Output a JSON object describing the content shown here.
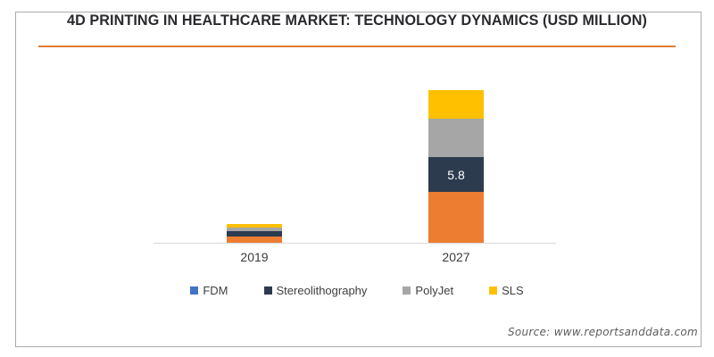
{
  "header": {
    "title": "4D PRINTING IN HEALTHCARE MARKET: TECHNOLOGY DYNAMICS (USD MILLION)",
    "underline_color": "#DF7B33"
  },
  "source": {
    "text": "Source: www.reportsanddata.com"
  },
  "frame": {
    "border_color": "#ABABAB"
  },
  "chart_data": {
    "type": "bar",
    "stacked": true,
    "title": "4D PRINTING IN HEALTHCARE MARKET: TECHNOLOGY DYNAMICS (USD MILLION)",
    "xlabel": "",
    "ylabel": "",
    "units": "USD Million",
    "categories": [
      "2019",
      "2027"
    ],
    "series": [
      {
        "name": "FDM",
        "values": [
          1.1,
          8.6
        ],
        "bar_color": "#ED7D31",
        "legend_color": "#4472C4",
        "data_labels": [
          "",
          ""
        ]
      },
      {
        "name": "Stereolithography",
        "values": [
          0.8,
          5.8
        ],
        "bar_color": "#2C3B4E",
        "legend_color": "#2C3B4E",
        "data_labels": [
          "",
          "5.8"
        ]
      },
      {
        "name": "PolyJet",
        "values": [
          0.6,
          6.6
        ],
        "bar_color": "#A6A6A6",
        "legend_color": "#A6A6A6",
        "data_labels": [
          "",
          ""
        ]
      },
      {
        "name": "SLS",
        "values": [
          0.6,
          4.7
        ],
        "bar_color": "#FFC000",
        "legend_color": "#FFC000",
        "data_labels": [
          "",
          ""
        ]
      }
    ],
    "ylim": [
      0,
      26.8
    ],
    "y_axis_visible": false,
    "gridlines": false,
    "legend_position": "bottom",
    "axis_line_color": "#D9D9D9",
    "data_label_note": "Only the 2027 Stereolithography segment is labeled (5.8); other values estimated from bar heights"
  }
}
